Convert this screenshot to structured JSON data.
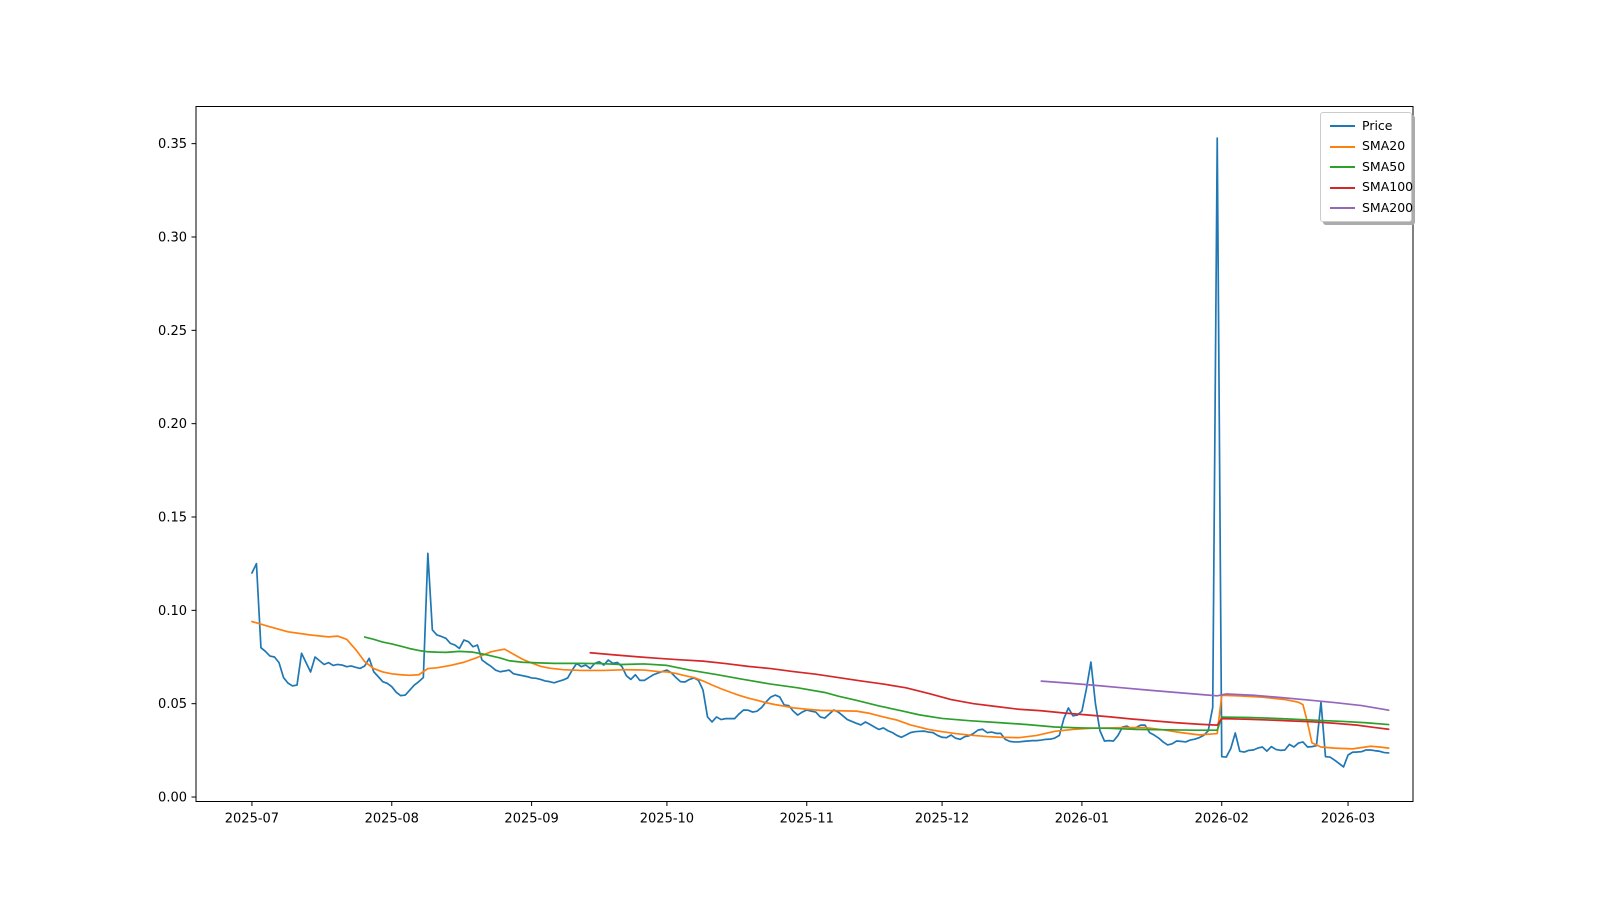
{
  "app": {
    "type": "matplotlib-figure",
    "background": "#ffffff",
    "frame_color": "#000000",
    "text_color": "#000000"
  },
  "legend": {
    "position": "upper right",
    "shadow": true,
    "items": [
      {
        "label": "Price",
        "color": "#1f77b4"
      },
      {
        "label": "SMA20",
        "color": "#ff7f0e"
      },
      {
        "label": "SMA50",
        "color": "#2ca02c"
      },
      {
        "label": "SMA100",
        "color": "#d62728"
      },
      {
        "label": "SMA200",
        "color": "#9467bd"
      }
    ]
  },
  "chart_data": {
    "type": "line",
    "title": "",
    "xlabel": "",
    "ylabel": "",
    "grid": false,
    "legend_position": "upper right",
    "x_axis": {
      "start_date": "2025-07-01",
      "unit": "days since 2025-07-01",
      "tick_labels": [
        "2025-07",
        "2025-08",
        "2025-09",
        "2025-10",
        "2025-11",
        "2025-12",
        "2026-01",
        "2026-02",
        "2026-03"
      ],
      "tick_day_offsets": [
        0,
        31,
        62,
        92,
        123,
        153,
        184,
        215,
        243
      ],
      "xlim_days": [
        -12.4,
        257.4
      ]
    },
    "y_axis": {
      "tick_labels": [
        "0.00",
        "0.05",
        "0.10",
        "0.15",
        "0.20",
        "0.25",
        "0.30",
        "0.35"
      ],
      "tick_values": [
        0.0,
        0.05,
        0.1,
        0.15,
        0.2,
        0.25,
        0.3,
        0.35
      ],
      "ylim": [
        -0.0024,
        0.3699
      ]
    },
    "series": [
      {
        "name": "Price",
        "color": "#1f77b4",
        "start_day": 0,
        "step": 1,
        "values": [
          0.12,
          0.125,
          0.08,
          0.078,
          0.0755,
          0.075,
          0.072,
          0.064,
          0.061,
          0.0595,
          0.06,
          0.077,
          0.072,
          0.067,
          0.075,
          0.073,
          0.071,
          0.072,
          0.0705,
          0.071,
          0.0707,
          0.0698,
          0.0702,
          0.0695,
          0.0689,
          0.0702,
          0.0743,
          0.0671,
          0.0645,
          0.0618,
          0.0609,
          0.0591,
          0.0561,
          0.0543,
          0.0546,
          0.0573,
          0.06,
          0.0618,
          0.064,
          0.1305,
          0.0895,
          0.0868,
          0.086,
          0.085,
          0.0823,
          0.0814,
          0.0796,
          0.0841,
          0.0832,
          0.0805,
          0.0814,
          0.0734,
          0.0716,
          0.07,
          0.068,
          0.0671,
          0.0675,
          0.068,
          0.066,
          0.0655,
          0.065,
          0.0645,
          0.0638,
          0.0636,
          0.063,
          0.0622,
          0.0618,
          0.0612,
          0.062,
          0.0627,
          0.0638,
          0.068,
          0.0716,
          0.0698,
          0.0707,
          0.0689,
          0.0716,
          0.0725,
          0.0707,
          0.0734,
          0.0716,
          0.0721,
          0.07,
          0.065,
          0.063,
          0.0655,
          0.0625,
          0.0625,
          0.064,
          0.0655,
          0.0664,
          0.0672,
          0.068,
          0.0665,
          0.064,
          0.0618,
          0.0616,
          0.063,
          0.0638,
          0.0625,
          0.0573,
          0.0429,
          0.0402,
          0.0429,
          0.0415,
          0.042,
          0.042,
          0.042,
          0.0445,
          0.0466,
          0.0465,
          0.0455,
          0.046,
          0.048,
          0.051,
          0.0535,
          0.0546,
          0.0536,
          0.0493,
          0.049,
          0.046,
          0.0439,
          0.0455,
          0.0466,
          0.046,
          0.0455,
          0.0429,
          0.0423,
          0.0445,
          0.0466,
          0.0455,
          0.0435,
          0.0415,
          0.0405,
          0.0395,
          0.0386,
          0.0402,
          0.0389,
          0.0375,
          0.0362,
          0.037,
          0.0355,
          0.0345,
          0.033,
          0.032,
          0.0332,
          0.0345,
          0.035,
          0.0352,
          0.0353,
          0.0348,
          0.0345,
          0.033,
          0.032,
          0.0318,
          0.0332,
          0.0315,
          0.0309,
          0.0323,
          0.0328,
          0.0341,
          0.0359,
          0.0363,
          0.0345,
          0.0348,
          0.0341,
          0.0341,
          0.0309,
          0.0298,
          0.0295,
          0.0295,
          0.0298,
          0.03,
          0.0302,
          0.0302,
          0.0305,
          0.0309,
          0.031,
          0.0316,
          0.033,
          0.042,
          0.0477,
          0.0435,
          0.0439,
          0.046,
          0.058,
          0.0723,
          0.05,
          0.0355,
          0.03,
          0.0302,
          0.03,
          0.033,
          0.0375,
          0.038,
          0.0365,
          0.0372,
          0.0385,
          0.0385,
          0.0345,
          0.0332,
          0.0316,
          0.0295,
          0.0279,
          0.0285,
          0.03,
          0.0298,
          0.0295,
          0.0305,
          0.031,
          0.0318,
          0.033,
          0.0355,
          0.048,
          0.353,
          0.0216,
          0.0214,
          0.026,
          0.0343,
          0.0245,
          0.0241,
          0.025,
          0.0252,
          0.0262,
          0.0268,
          0.0246,
          0.027,
          0.0255,
          0.025,
          0.0252,
          0.0282,
          0.0268,
          0.0289,
          0.0295,
          0.0268,
          0.027,
          0.0275,
          0.0509,
          0.0216,
          0.0214,
          0.0198,
          0.018,
          0.0161,
          0.0225,
          0.024,
          0.0241,
          0.0243,
          0.0252,
          0.0252,
          0.0248,
          0.0245,
          0.0238,
          0.0236
        ]
      },
      {
        "name": "SMA20",
        "color": "#ff7f0e",
        "points": [
          [
            0,
            0.094
          ],
          [
            4,
            0.0912
          ],
          [
            8,
            0.0885
          ],
          [
            13,
            0.0868
          ],
          [
            17,
            0.0858
          ],
          [
            19,
            0.0862
          ],
          [
            21,
            0.0845
          ],
          [
            23,
            0.079
          ],
          [
            25,
            0.0725
          ],
          [
            27,
            0.0688
          ],
          [
            29,
            0.067
          ],
          [
            31,
            0.066
          ],
          [
            33,
            0.0655
          ],
          [
            35,
            0.0652
          ],
          [
            37,
            0.0655
          ],
          [
            39,
            0.0688
          ],
          [
            41,
            0.0692
          ],
          [
            44,
            0.0705
          ],
          [
            47,
            0.0722
          ],
          [
            50,
            0.0748
          ],
          [
            53,
            0.0778
          ],
          [
            55,
            0.0788
          ],
          [
            56,
            0.0792
          ],
          [
            58,
            0.0765
          ],
          [
            60,
            0.0738
          ],
          [
            62,
            0.0718
          ],
          [
            64,
            0.07
          ],
          [
            66,
            0.069
          ],
          [
            69,
            0.0682
          ],
          [
            73,
            0.0678
          ],
          [
            78,
            0.0678
          ],
          [
            83,
            0.0682
          ],
          [
            87,
            0.068
          ],
          [
            90,
            0.0672
          ],
          [
            92,
            0.067
          ],
          [
            94,
            0.0662
          ],
          [
            96,
            0.065
          ],
          [
            98,
            0.064
          ],
          [
            100,
            0.0622
          ],
          [
            102,
            0.06
          ],
          [
            104,
            0.058
          ],
          [
            106,
            0.0562
          ],
          [
            108,
            0.0545
          ],
          [
            110,
            0.053
          ],
          [
            112,
            0.0518
          ],
          [
            114,
            0.0505
          ],
          [
            116,
            0.0495
          ],
          [
            118,
            0.0487
          ],
          [
            120,
            0.0478
          ],
          [
            123,
            0.047
          ],
          [
            126,
            0.0464
          ],
          [
            130,
            0.0462
          ],
          [
            134,
            0.046
          ],
          [
            137,
            0.0448
          ],
          [
            139,
            0.0435
          ],
          [
            143,
            0.0412
          ],
          [
            146,
            0.0386
          ],
          [
            150,
            0.0362
          ],
          [
            153,
            0.035
          ],
          [
            156,
            0.034
          ],
          [
            159,
            0.0332
          ],
          [
            163,
            0.0324
          ],
          [
            166,
            0.032
          ],
          [
            170,
            0.0318
          ],
          [
            174,
            0.033
          ],
          [
            178,
            0.0352
          ],
          [
            182,
            0.0362
          ],
          [
            186,
            0.0368
          ],
          [
            190,
            0.037
          ],
          [
            194,
            0.0372
          ],
          [
            198,
            0.0372
          ],
          [
            202,
            0.036
          ],
          [
            206,
            0.0345
          ],
          [
            210,
            0.0333
          ],
          [
            213,
            0.0338
          ],
          [
            214,
            0.034
          ],
          [
            215,
            0.0545
          ],
          [
            219,
            0.0542
          ],
          [
            224,
            0.0535
          ],
          [
            229,
            0.0522
          ],
          [
            232,
            0.0508
          ],
          [
            233,
            0.0495
          ],
          [
            234,
            0.04
          ],
          [
            235,
            0.029
          ],
          [
            237,
            0.0268
          ],
          [
            240,
            0.0262
          ],
          [
            244,
            0.0258
          ],
          [
            248,
            0.0272
          ],
          [
            250,
            0.0268
          ],
          [
            252,
            0.0262
          ]
        ]
      },
      {
        "name": "SMA50",
        "color": "#2ca02c",
        "points": [
          [
            25,
            0.0857
          ],
          [
            27,
            0.0845
          ],
          [
            29,
            0.083
          ],
          [
            31,
            0.082
          ],
          [
            33,
            0.0808
          ],
          [
            35,
            0.0795
          ],
          [
            37,
            0.0785
          ],
          [
            39,
            0.0778
          ],
          [
            41,
            0.0776
          ],
          [
            43,
            0.0775
          ],
          [
            46,
            0.078
          ],
          [
            49,
            0.0776
          ],
          [
            52,
            0.0762
          ],
          [
            55,
            0.0745
          ],
          [
            57,
            0.073
          ],
          [
            60,
            0.0722
          ],
          [
            62,
            0.072
          ],
          [
            67,
            0.0716
          ],
          [
            72,
            0.0716
          ],
          [
            77,
            0.0715
          ],
          [
            82,
            0.071
          ],
          [
            87,
            0.0713
          ],
          [
            92,
            0.0705
          ],
          [
            97,
            0.068
          ],
          [
            103,
            0.0656
          ],
          [
            109,
            0.063
          ],
          [
            115,
            0.0605
          ],
          [
            121,
            0.0585
          ],
          [
            127,
            0.056
          ],
          [
            130,
            0.054
          ],
          [
            134,
            0.0518
          ],
          [
            139,
            0.0488
          ],
          [
            144,
            0.0462
          ],
          [
            148,
            0.044
          ],
          [
            153,
            0.0421
          ],
          [
            159,
            0.0409
          ],
          [
            166,
            0.0398
          ],
          [
            172,
            0.0388
          ],
          [
            178,
            0.0375
          ],
          [
            184,
            0.037
          ],
          [
            190,
            0.0368
          ],
          [
            196,
            0.0362
          ],
          [
            203,
            0.036
          ],
          [
            209,
            0.0358
          ],
          [
            214,
            0.0358
          ],
          [
            215,
            0.0428
          ],
          [
            221,
            0.0426
          ],
          [
            228,
            0.042
          ],
          [
            235,
            0.0412
          ],
          [
            242,
            0.0405
          ],
          [
            247,
            0.0398
          ],
          [
            252,
            0.0388
          ]
        ]
      },
      {
        "name": "SMA100",
        "color": "#d62728",
        "points": [
          [
            75,
            0.0773
          ],
          [
            80,
            0.0762
          ],
          [
            85,
            0.0752
          ],
          [
            90,
            0.0743
          ],
          [
            95,
            0.0735
          ],
          [
            100,
            0.0728
          ],
          [
            105,
            0.0715
          ],
          [
            110,
            0.07
          ],
          [
            115,
            0.0688
          ],
          [
            120,
            0.0672
          ],
          [
            125,
            0.0658
          ],
          [
            130,
            0.064
          ],
          [
            135,
            0.0622
          ],
          [
            140,
            0.0605
          ],
          [
            145,
            0.0585
          ],
          [
            150,
            0.0555
          ],
          [
            155,
            0.0522
          ],
          [
            160,
            0.05
          ],
          [
            165,
            0.0485
          ],
          [
            170,
            0.047
          ],
          [
            175,
            0.0462
          ],
          [
            180,
            0.045
          ],
          [
            185,
            0.044
          ],
          [
            190,
            0.043
          ],
          [
            195,
            0.0418
          ],
          [
            200,
            0.0408
          ],
          [
            205,
            0.0398
          ],
          [
            210,
            0.039
          ],
          [
            214,
            0.0385
          ],
          [
            215,
            0.042
          ],
          [
            220,
            0.0417
          ],
          [
            225,
            0.0413
          ],
          [
            230,
            0.0408
          ],
          [
            235,
            0.0403
          ],
          [
            240,
            0.0395
          ],
          [
            245,
            0.0385
          ],
          [
            249,
            0.0372
          ],
          [
            252,
            0.0363
          ]
        ]
      },
      {
        "name": "SMA200",
        "color": "#9467bd",
        "points": [
          [
            175,
            0.0621
          ],
          [
            181,
            0.061
          ],
          [
            187,
            0.0598
          ],
          [
            193,
            0.0585
          ],
          [
            199,
            0.0572
          ],
          [
            205,
            0.056
          ],
          [
            211,
            0.0548
          ],
          [
            214,
            0.0542
          ],
          [
            216,
            0.0552
          ],
          [
            222,
            0.0545
          ],
          [
            228,
            0.0533
          ],
          [
            234,
            0.052
          ],
          [
            240,
            0.0506
          ],
          [
            246,
            0.049
          ],
          [
            252,
            0.0465
          ]
        ]
      }
    ]
  }
}
